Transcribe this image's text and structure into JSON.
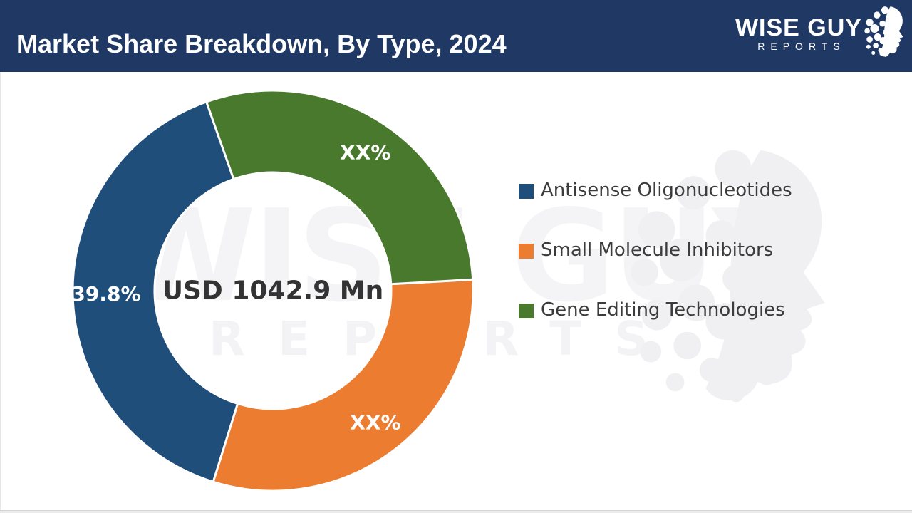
{
  "header": {
    "title": "Market Share Breakdown, By Type, 2024",
    "logo": {
      "line1": "WISE GUY",
      "line2": "REPORTS"
    }
  },
  "chart_data": {
    "type": "pie",
    "variant": "donut",
    "title": "Market Share Breakdown, By Type, 2024",
    "center_label": "USD 1042.9 Mn",
    "start_angle_deg": 109.4,
    "direction": "counterclockwise",
    "legend_position": "right",
    "segments": [
      {
        "label": "Antisense Oligonucleotides",
        "value": 39.8,
        "display": "39.8%",
        "color": "#1F4E7A"
      },
      {
        "label": "Small Molecule Inhibitors",
        "value": 30.7,
        "display": "XX%",
        "color": "#EC7C30"
      },
      {
        "label": "Gene Editing Technologies",
        "value": 29.5,
        "display": "XX%",
        "color": "#48792C"
      }
    ]
  },
  "watermark": {
    "line1": "WISE GUY",
    "line2": "REPORTS"
  },
  "colors": {
    "header_bg": "#1F3864",
    "title_text": "#FFFFFF",
    "center_text": "#333333",
    "slice_label_text": "#FFFFFF",
    "legend_text": "#3C3C3C",
    "watermark_text": "#F4F4F6",
    "footer_strip": "#EBEBEB"
  }
}
